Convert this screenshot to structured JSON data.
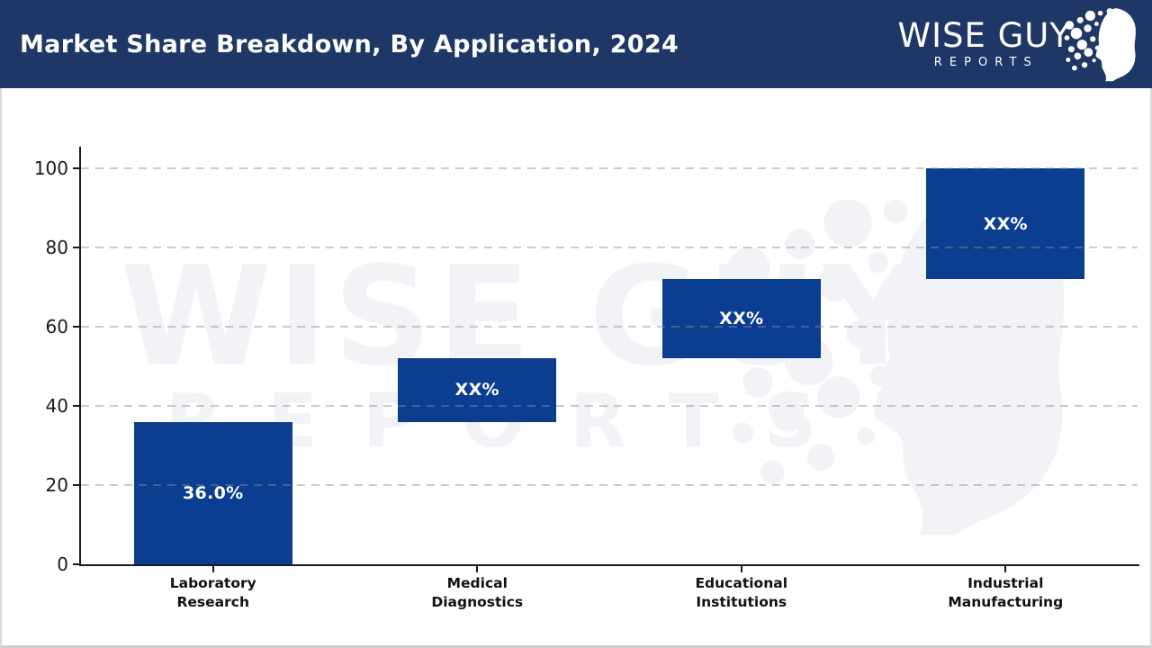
{
  "header": {
    "title": "Market Share Breakdown, By Application, 2024",
    "brand": {
      "name": "WISE GUY",
      "subtitle": "REPORTS",
      "head_icon": "head-of-dots"
    }
  },
  "watermark": {
    "name": "WISE GUY",
    "subtitle": "REPORTS"
  },
  "colors": {
    "header_bg": "#1f3766",
    "bar": "#0b3d91",
    "bar_label": "#ffffff",
    "watermark": "#f2f3f6",
    "grid": "#d9d9d9",
    "axis": "#1a1a1a"
  },
  "chart_data": {
    "type": "bar",
    "subtype": "waterfall",
    "title": "Market Share Breakdown, By Application, 2024",
    "categories": [
      "Laboratory Research",
      "Medical Diagnostics",
      "Educational Institutions",
      "Industrial Manufacturing"
    ],
    "category_lines": [
      [
        "Laboratory",
        "Research"
      ],
      [
        "Medical",
        "Diagnostics"
      ],
      [
        "Educational",
        "Institutions"
      ],
      [
        "Industrial",
        "Manufacturing"
      ]
    ],
    "segments": [
      {
        "category": "Laboratory Research",
        "start": 0,
        "end": 36,
        "value": 36,
        "label": "36.0%"
      },
      {
        "category": "Medical Diagnostics",
        "start": 36,
        "end": 52,
        "value": 16,
        "label": "XX%"
      },
      {
        "category": "Educational Institutions",
        "start": 52,
        "end": 72,
        "value": 20,
        "label": "XX%"
      },
      {
        "category": "Industrial Manufacturing",
        "start": 72,
        "end": 100,
        "value": 28,
        "label": "XX%"
      }
    ],
    "xlabel": "",
    "ylabel": "",
    "yticks": [
      0,
      20,
      40,
      60,
      80,
      100
    ],
    "ylim": [
      0,
      105.45
    ],
    "grid": "dashed-horizontal",
    "legend": "none",
    "bar_color": "#0b3d91",
    "bar_label_color": "#ffffff"
  }
}
